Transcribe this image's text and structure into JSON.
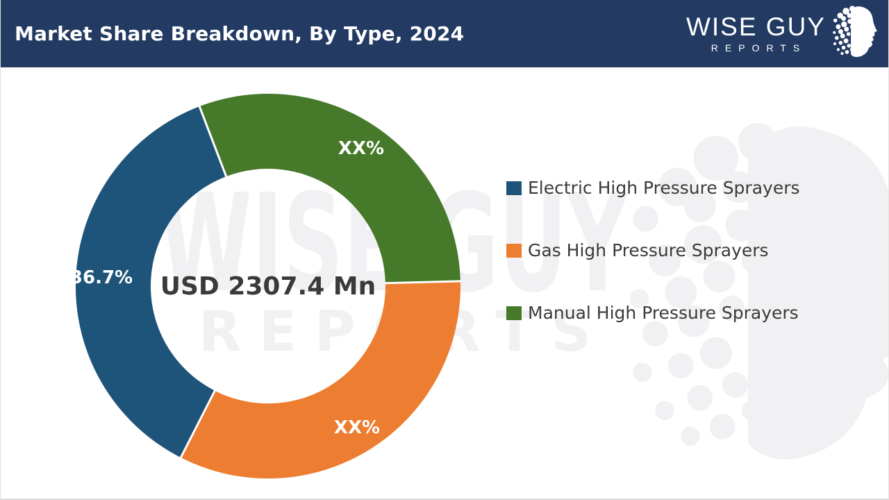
{
  "header": {
    "title": "Market Share Breakdown, By Type, 2024",
    "logo": {
      "name": "WISE GUY",
      "tagline": "REPORTS"
    }
  },
  "watermark": {
    "line1": "WISE GUY",
    "line2": "REPORTS"
  },
  "chart_data": {
    "type": "pie",
    "variant": "donut",
    "title": "Market Share Breakdown, By Type, 2024",
    "center_label": "USD 2307.4 Mn",
    "legend_position": "right",
    "start_angle_deg": 110.9,
    "direction": "counterclockwise",
    "inner_radius_ratio": 0.61,
    "series": [
      {
        "name": "Electric High Pressure Sprayers",
        "label": "36.7%",
        "value_pct": 36.7,
        "color": "#1F547A"
      },
      {
        "name": "Gas High Pressure Sprayers",
        "label": "XX%",
        "value_pct": 32.9,
        "color": "#ED7D31"
      },
      {
        "name": "Manual High Pressure Sprayers",
        "label": "XX%",
        "value_pct": 30.4,
        "color": "#46792A"
      }
    ]
  },
  "colors": {
    "header_bg": "#233A63",
    "text_dark": "#3A3A3A",
    "watermark": "#F1F1F3",
    "border": "#D9D9D9",
    "divider": "#FFFFFF"
  }
}
